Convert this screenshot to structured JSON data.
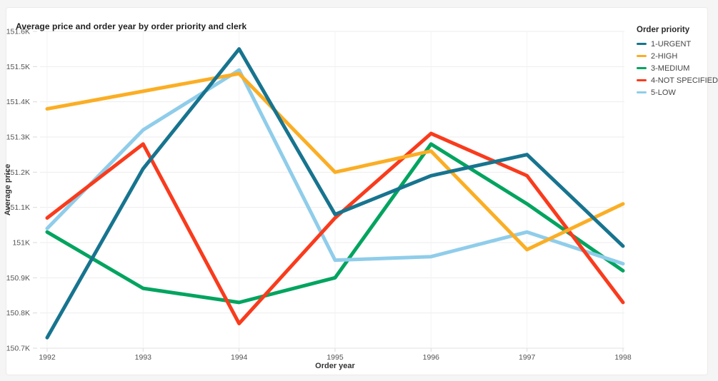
{
  "header": {
    "title": "Average price and order year by order priority and clerk"
  },
  "legend": {
    "title": "Order priority"
  },
  "chart_data": {
    "type": "line",
    "title": "Average price and order year by order priority and clerk",
    "xlabel": "Order year",
    "ylabel": "Average price",
    "x": [
      1992,
      1993,
      1994,
      1995,
      1996,
      1997,
      1998
    ],
    "ylim": [
      150700,
      151600
    ],
    "ytick_step": 100,
    "ytick_labels": [
      "150.7K",
      "150.8K",
      "150.9K",
      "151K",
      "151.1K",
      "151.2K",
      "151.3K",
      "151.4K",
      "151.5K",
      "151.6K"
    ],
    "grid": true,
    "legend_position": "top-right",
    "series": [
      {
        "name": "1-URGENT",
        "color": "#17748F",
        "values": [
          150730,
          151210,
          151550,
          151080,
          151190,
          151250,
          150990
        ]
      },
      {
        "name": "2-HIGH",
        "color": "#FBAE24",
        "values": [
          151380,
          151430,
          151480,
          151200,
          151260,
          150980,
          151110
        ]
      },
      {
        "name": "3-MEDIUM",
        "color": "#00A45F",
        "values": [
          151030,
          150870,
          150830,
          150900,
          151280,
          151110,
          150920
        ]
      },
      {
        "name": "4-NOT SPECIFIED",
        "color": "#F93B1D",
        "values": [
          151070,
          151280,
          150770,
          151070,
          151310,
          151190,
          150830
        ]
      },
      {
        "name": "5-LOW",
        "color": "#8FCDEA",
        "values": [
          151040,
          151320,
          151490,
          150950,
          150960,
          151030,
          150940
        ]
      }
    ],
    "draw_order": [
      2,
      4,
      3,
      1,
      0
    ]
  }
}
